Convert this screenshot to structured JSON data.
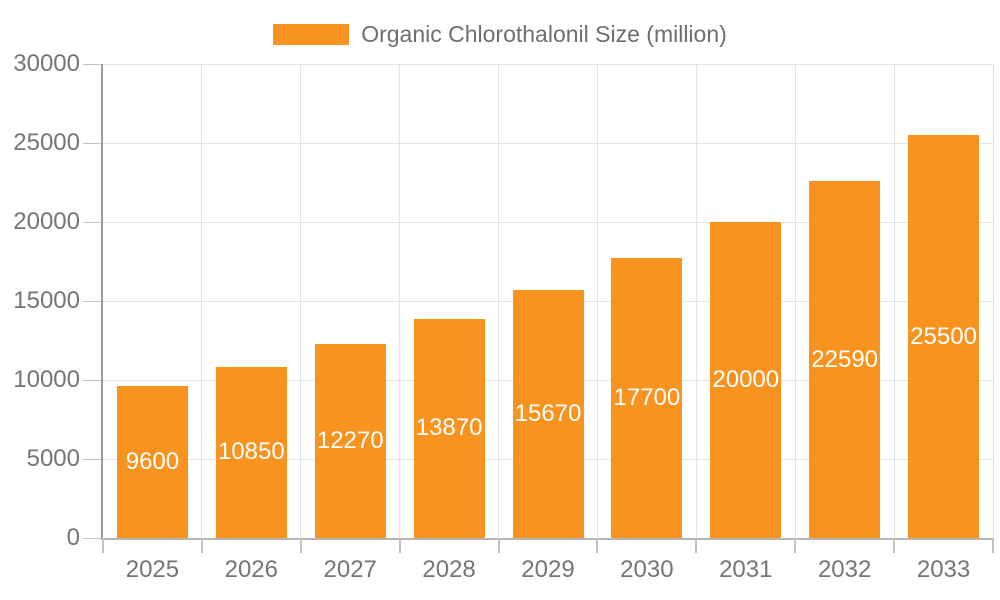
{
  "chart_data": {
    "type": "bar",
    "title": "",
    "legend": "Organic Chlorothalonil Size (million)",
    "legend_position": "top-center",
    "categories": [
      "2025",
      "2026",
      "2027",
      "2028",
      "2029",
      "2030",
      "2031",
      "2032",
      "2033"
    ],
    "values": [
      9600,
      10850,
      12270,
      13870,
      15670,
      17700,
      20000,
      22590,
      25500
    ],
    "yticks": [
      0,
      5000,
      10000,
      15000,
      20000,
      25000,
      30000
    ],
    "ylim": [
      0,
      30000
    ],
    "xlabel": "",
    "ylabel": "",
    "grid": true,
    "bar_color": "#f7931e",
    "value_label_color": "#ffffff",
    "axis_text_color": "#757575",
    "legend_text_color": "#6e6e6e"
  }
}
